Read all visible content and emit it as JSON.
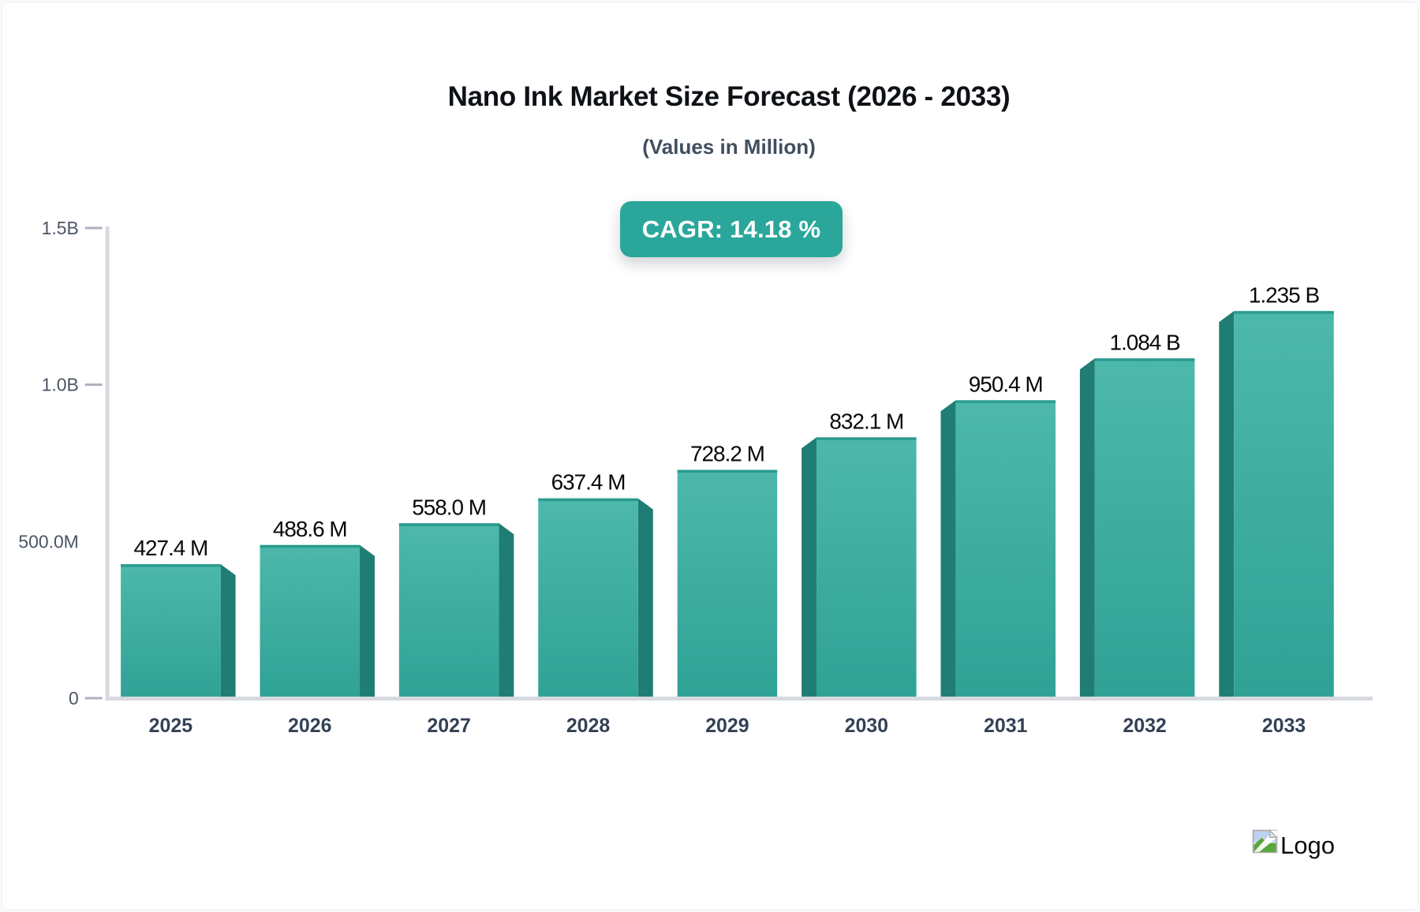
{
  "page": {
    "background": "#f8fafc",
    "card_background": "#ffffff"
  },
  "header": {
    "title": "Nano Ink Market Size Forecast (2026 - 2033)",
    "subtitle": "(Values in Million)"
  },
  "badge": {
    "label": "CAGR: 14.18 %",
    "background": "#2aa79a",
    "text_color": "#ffffff"
  },
  "footer": {
    "logo_text": "Logo"
  },
  "chart_data": {
    "type": "bar",
    "title": "Nano Ink Market Size Forecast (2026 - 2033)",
    "subtitle": "(Values in Million)",
    "categories": [
      "2025",
      "2026",
      "2027",
      "2028",
      "2029",
      "2030",
      "2031",
      "2032",
      "2033"
    ],
    "values": [
      427.4,
      488.6,
      558.0,
      637.4,
      728.2,
      832.1,
      950.4,
      1084,
      1235
    ],
    "value_labels": [
      "427.4 M",
      "488.6 M",
      "558.0 M",
      "637.4 M",
      "728.2 M",
      "832.1 M",
      "950.4 M",
      "1.084 B",
      "1.235 B"
    ],
    "value_unit": "Million",
    "cagr_label": "CAGR: 14.18 %",
    "ylim": [
      0,
      1500
    ],
    "y_ticks": [
      {
        "label": "0",
        "value": 0,
        "dash": true
      },
      {
        "label": "500.0M",
        "value": 500,
        "dash": false
      },
      {
        "label": "1.0B",
        "value": 1000,
        "dash": true
      },
      {
        "label": "1.5B",
        "value": 1500,
        "dash": true
      }
    ],
    "grid": false,
    "legend": false,
    "style": "pseudo-3d-center-perspective",
    "colors": {
      "bar_face_top": "#4db8ab",
      "bar_face_bottom": "#2fa295",
      "bar_side": "#1f7d73",
      "bar_top_edge": "#2b9b8f",
      "axis_line": "#d6d9de",
      "tick_dash": "#aab1bb",
      "y_label": "#4b5563",
      "x_label": "#334155",
      "value_label": "#060809"
    }
  }
}
